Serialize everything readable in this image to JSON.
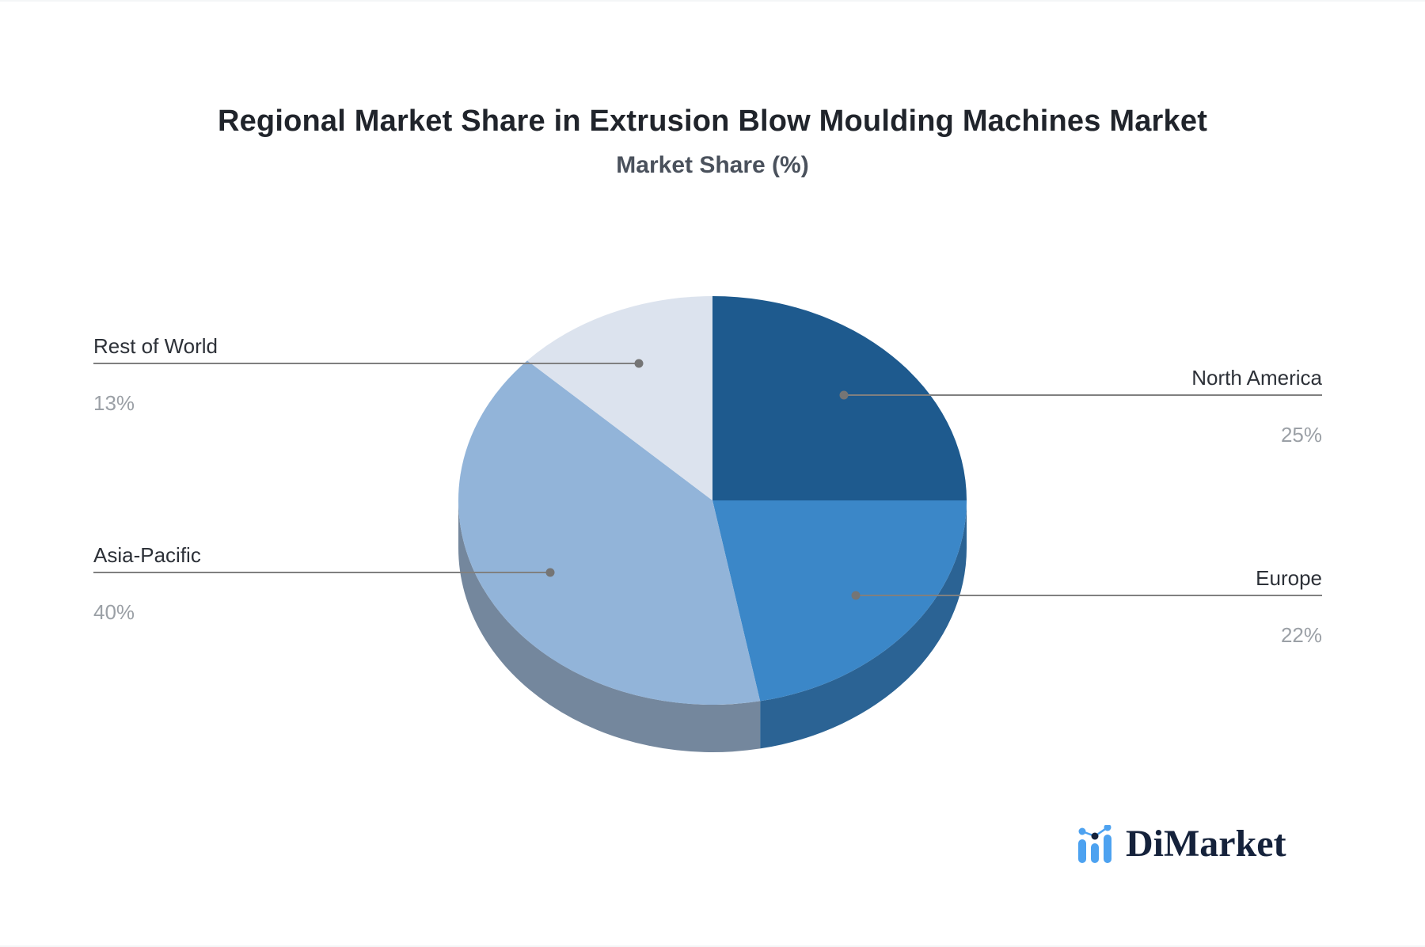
{
  "title": "Regional Market Share in Extrusion Blow Moulding Machines Market",
  "subtitle": "Market Share (%)",
  "logo": {
    "text": "DiMarket",
    "icon": "bar-chart-icon"
  },
  "style": {
    "leader_line_color": "#808080",
    "leader_dot_color": "#757575",
    "label_color": "#2d3138",
    "value_color": "#9ba0a6",
    "title_color": "#20242b",
    "subtitle_color": "#4a515c",
    "logo_navy": "#15223b",
    "logo_blue": "#4da2f0",
    "background": "#ffffff"
  },
  "chart_data": {
    "type": "pie",
    "title": "Regional Market Share in Extrusion Blow Moulding Machines Market",
    "subtitle": "Market Share (%)",
    "unit": "%",
    "effect": "3d",
    "start_angle_deg": 0,
    "direction": "clockwise",
    "legend": "none",
    "slices": [
      {
        "label": "North America",
        "value": 25,
        "display": "25%",
        "color": "#1e5a8e",
        "side_color": "#174a75",
        "label_side": "right"
      },
      {
        "label": "Europe",
        "value": 22,
        "display": "22%",
        "color": "#3b87c8",
        "side_color": "#2b6394",
        "label_side": "right"
      },
      {
        "label": "Asia-Pacific",
        "value": 40,
        "display": "40%",
        "color": "#92b4d9",
        "side_color": "#74879d",
        "label_side": "left"
      },
      {
        "label": "Rest of World",
        "value": 13,
        "display": "13%",
        "color": "#dce3ee",
        "side_color": "#b4bcc9",
        "label_side": "left"
      }
    ]
  }
}
